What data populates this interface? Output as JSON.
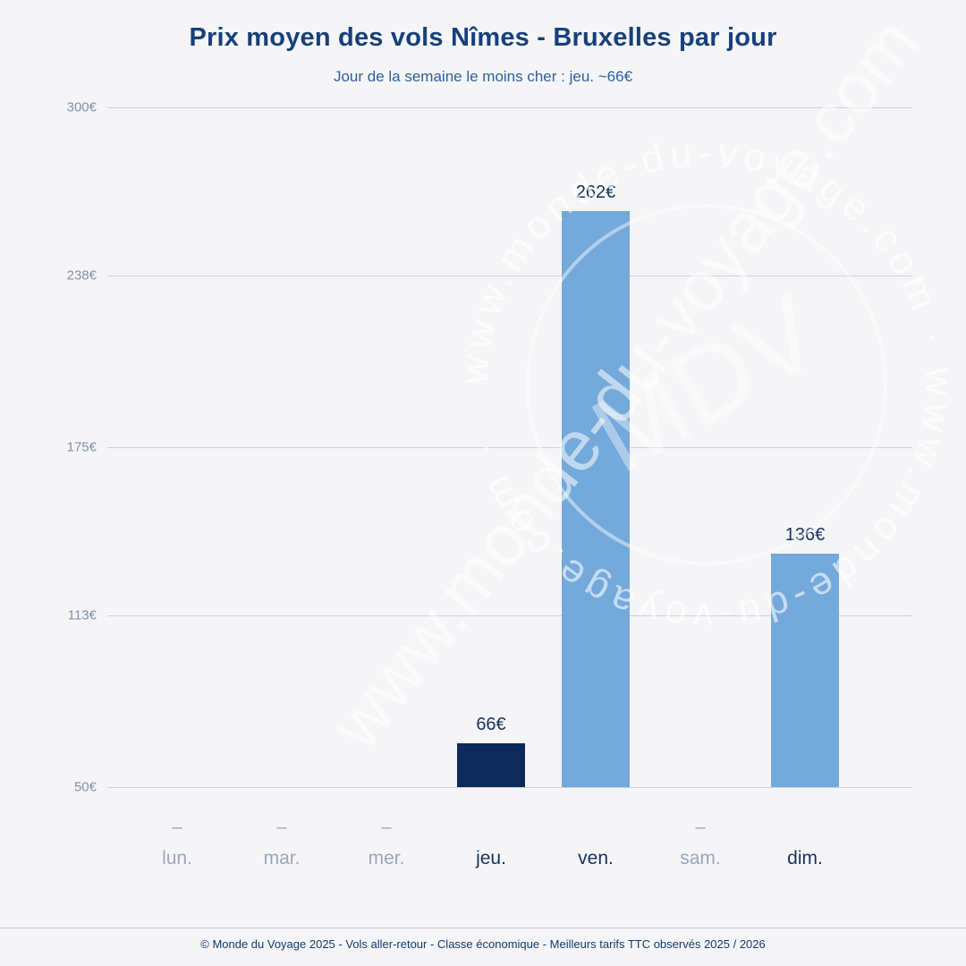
{
  "title": "Prix moyen des vols Nîmes - Bruxelles par jour",
  "subtitle": "Jour de la semaine le moins cher : jeu. ~66€",
  "footer": "© Monde du Voyage 2025 - Vols aller-retour - Classe économique - Meilleurs tarifs TTC observés 2025 / 2026",
  "watermark": {
    "circular_text": "www.monde-du-voyage.com · www.monde-du-voyage.com ·",
    "diagonal_text": "www.monde-du-voyage.com",
    "badge": "MDV"
  },
  "colors": {
    "background": "#f5f5f7",
    "title": "#17407c",
    "subtitle": "#2d5f9e",
    "grid": "#c9d2e0",
    "ytick_label": "#8290ab",
    "bar_light": "#74a9db",
    "bar_dark": "#0e2a5a",
    "value_label": "#15335e",
    "xlabel_active": "#15335e",
    "xlabel_inactive": "#9aa6bb",
    "footer_text": "#123a6d"
  },
  "chart_data": {
    "type": "bar",
    "title": "Prix moyen des vols Nîmes - Bruxelles par jour",
    "subtitle": "Jour de la semaine le moins cher : jeu. ~66€",
    "xlabel": "",
    "ylabel": "",
    "categories": [
      "lun.",
      "mar.",
      "mer.",
      "jeu.",
      "ven.",
      "sam.",
      "dim."
    ],
    "values": [
      null,
      null,
      null,
      66,
      262,
      null,
      136
    ],
    "value_labels": [
      "",
      "",
      "",
      "66€",
      "262€",
      "",
      "136€"
    ],
    "empty_marker": "–",
    "yticks": [
      50,
      113,
      175,
      238,
      300
    ],
    "ytick_labels": [
      "50€",
      "113€",
      "175€",
      "238€",
      "300€"
    ],
    "ylim": [
      50,
      300
    ],
    "grid": "horizontal only",
    "legend": "none",
    "highlight_index": 3,
    "highlight_meaning": "cheapest day (jeu.)"
  }
}
